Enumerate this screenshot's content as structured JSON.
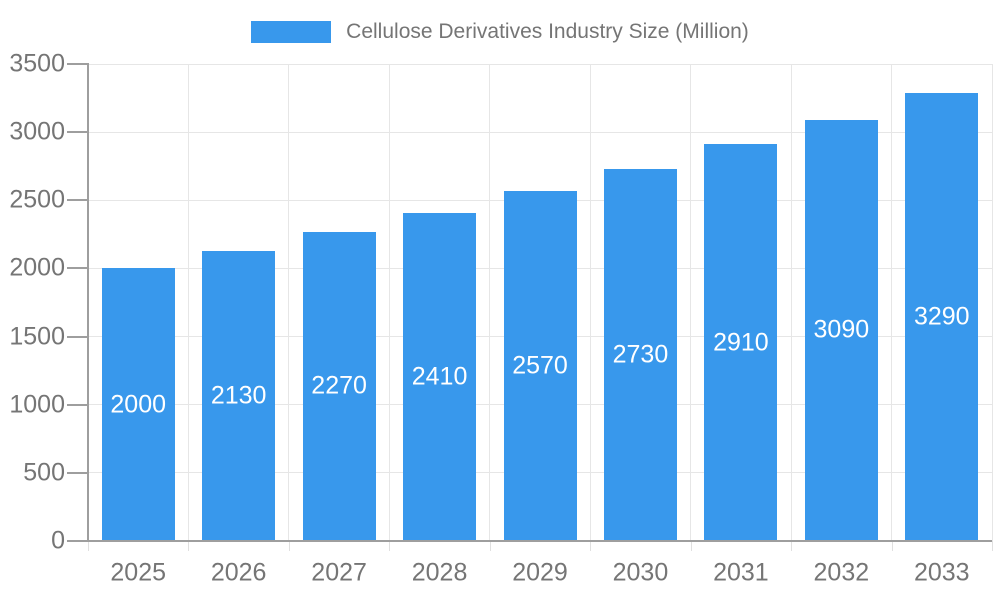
{
  "chart_data": {
    "type": "bar",
    "title": "Cellulose Derivatives Industry Size (Million)",
    "series_name": "Cellulose Derivatives Industry Size (Million)",
    "categories": [
      "2025",
      "2026",
      "2027",
      "2028",
      "2029",
      "2030",
      "2031",
      "2032",
      "2033"
    ],
    "values": [
      2000,
      2130,
      2270,
      2410,
      2570,
      2730,
      2910,
      3090,
      3290
    ],
    "xlabel": "",
    "ylabel": "",
    "ylim": [
      0,
      3500
    ],
    "ytick_step": 500,
    "ytick_labels": [
      "0",
      "500",
      "1000",
      "1500",
      "2000",
      "2500",
      "3000",
      "3500"
    ],
    "grid": true,
    "legend_position": "top-center",
    "colors": {
      "bar": "#3898EC",
      "bar_label_text": "#FFFFFF",
      "axis_text": "#757575",
      "legend_text": "#757575",
      "grid_line": "#E6E6E6",
      "axis_line": "#9E9E9E",
      "x_tick": "#E0E0E0",
      "background": "#FFFFFF"
    }
  }
}
